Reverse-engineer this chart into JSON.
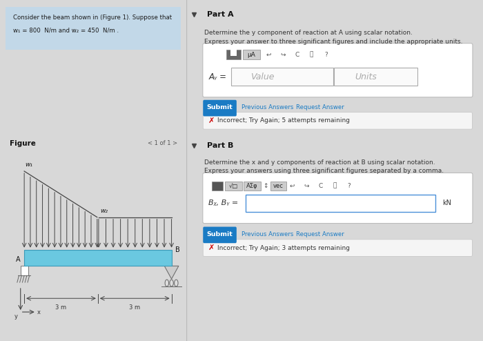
{
  "left_bg": "#d8d8d8",
  "right_bg": "#ebebeb",
  "left_panel": {
    "problem_text_line1": "Consider the beam shown in (Figure 1). Suppose that",
    "problem_text_line2": "w₁ = 800  N/m and w₂ = 450  N/m .",
    "figure_label": "Figure",
    "nav_text": "< 1 of 1 >",
    "beam_color": "#6ac8e0",
    "beam_border": "#4a9ab8",
    "dim_label1": "3 m",
    "dim_label2": "3 m",
    "w1_label": "w₁",
    "w2_label": "w₂",
    "A_label": "A",
    "B_label": "B",
    "y_label": "y",
    "x_label": "x"
  },
  "right_panel": {
    "part_a_label": "Part A",
    "part_a_desc1": "Determine the y component of reaction at A using scalar notation.",
    "part_a_desc2": "Express your answer to three significant figures and include the appropriate units.",
    "ay_label": "Aᵧ =",
    "value_placeholder": "Value",
    "units_placeholder": "Units",
    "submit_label": "Submit",
    "prev_answers": "Previous Answers",
    "req_answer": "Request Answer",
    "incorrect_a": "Incorrect; Try Again; 5 attempts remaining",
    "part_b_label": "Part B",
    "part_b_desc1": "Determine the x and y components of reaction at B using scalar notation.",
    "part_b_desc2": "Express your answers using three significant figures separated by a comma.",
    "bxy_label": "Bᵪ, Bᵧ =",
    "kn_label": "kN",
    "incorrect_b": "Incorrect; Try Again; 3 attempts remaining",
    "submit_b_label": "Submit",
    "prev_answers_b": "Previous Answers",
    "req_answer_b": "Request Answer"
  }
}
